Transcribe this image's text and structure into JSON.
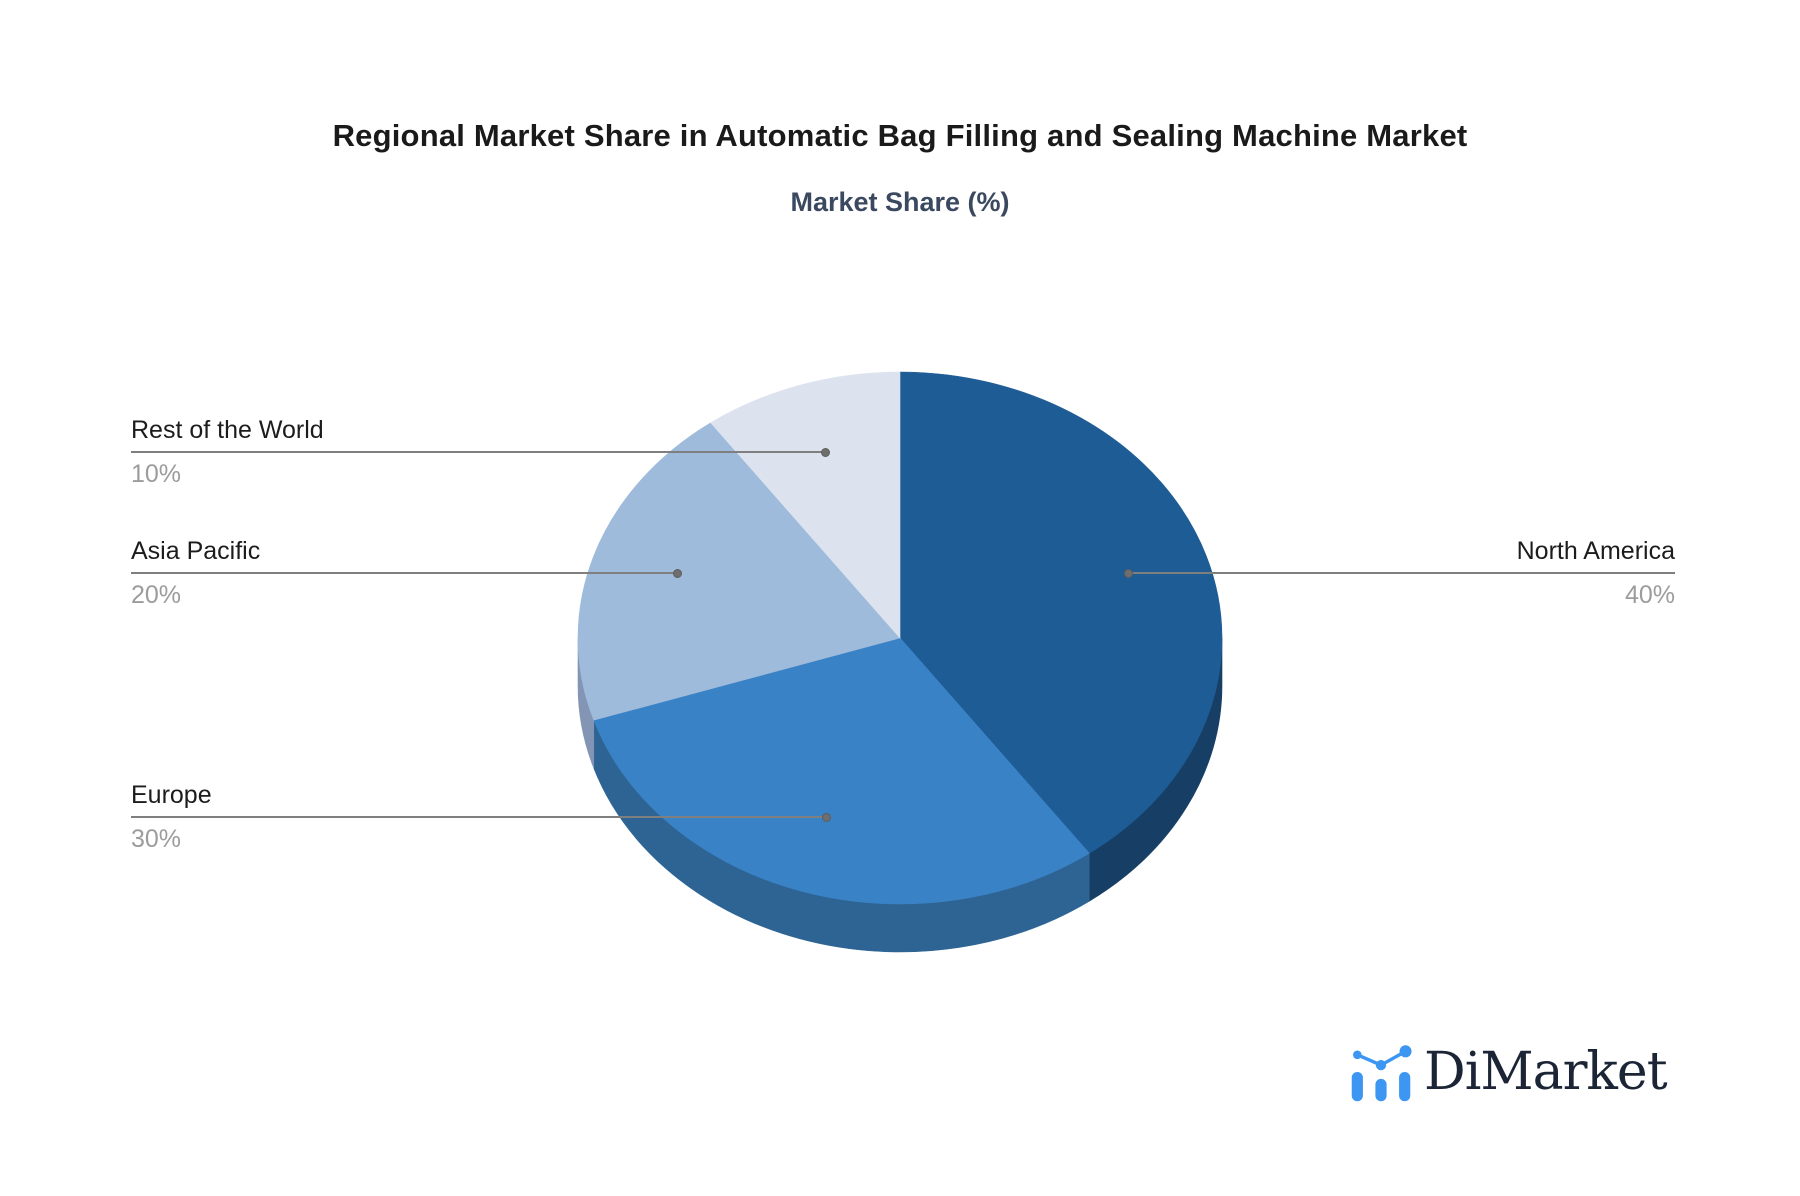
{
  "header": {
    "title": "Regional Market Share in Automatic Bag Filling and Sealing Machine Market",
    "subtitle": "Market Share (%)"
  },
  "chart_data": {
    "type": "pie",
    "style": "3d",
    "title": "Regional Market Share in Automatic Bag Filling and Sealing Machine Market",
    "subtitle": "Market Share (%)",
    "unit": "%",
    "total": 100,
    "direction": "clockwise",
    "start_angle": "12-o-clock",
    "slices": [
      {
        "label": "North America",
        "value": 40,
        "display": "40%",
        "color": "#1E5C96",
        "side_color": "#173F66"
      },
      {
        "label": "Europe",
        "value": 30,
        "display": "30%",
        "color": "#3A82C6",
        "side_color": "#2E6494"
      },
      {
        "label": "Asia Pacific",
        "value": 20,
        "display": "20%",
        "color": "#9FBBDB",
        "side_color": "#8295B4"
      },
      {
        "label": "Rest of the World",
        "value": 10,
        "display": "10%",
        "color": "#DCE3EF",
        "side_color": "#C5CEDF"
      }
    ],
    "legend_position": "callout-labels",
    "callout_line_color": "#7F7F7F",
    "label_color": "#1C1C1C",
    "percent_color": "#9C9C9C",
    "background": "#FFFFFF"
  },
  "logo": {
    "text": "DiMarket",
    "icon": "bar-line-chart-icon",
    "icon_color": "#3D96F2",
    "text_color": "#1B2535"
  }
}
